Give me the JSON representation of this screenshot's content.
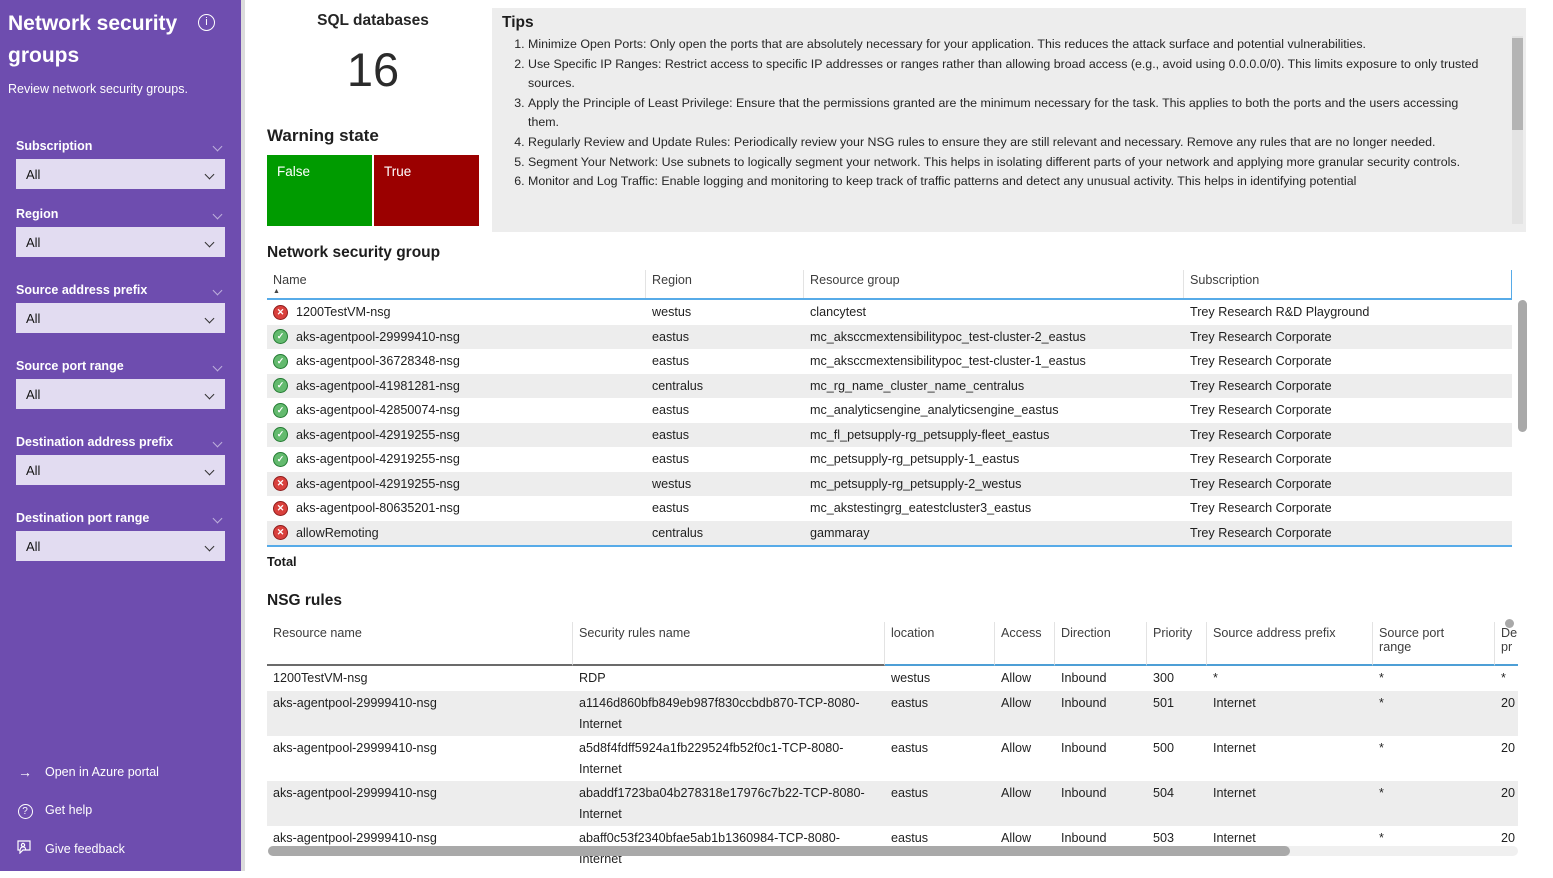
{
  "sidebar": {
    "title": "Network security groups",
    "subtitle": "Review network security groups.",
    "filters": [
      {
        "label": "Subscription",
        "value": "All"
      },
      {
        "label": "Region",
        "value": "All"
      },
      {
        "label": "Source address prefix",
        "value": "All"
      },
      {
        "label": "Source port range",
        "value": "All"
      },
      {
        "label": "Destination address prefix",
        "value": "All"
      },
      {
        "label": "Destination port range",
        "value": "All"
      }
    ],
    "links": [
      {
        "label": "Open in Azure portal",
        "icon": "arrow-right-icon"
      },
      {
        "label": "Get help",
        "icon": "help-circle-icon"
      },
      {
        "label": "Give feedback",
        "icon": "feedback-icon"
      }
    ]
  },
  "kpi": {
    "title": "SQL databases",
    "value": "16"
  },
  "warning": {
    "title": "Warning state",
    "options": [
      {
        "label": "False",
        "color": "#009B00"
      },
      {
        "label": "True",
        "color": "#9B0000"
      }
    ]
  },
  "tips": {
    "title": "Tips",
    "items": [
      "Minimize Open Ports: Only open the ports that are absolutely necessary for your application. This reduces the attack surface and potential vulnerabilities.",
      "Use Specific IP Ranges: Restrict access to specific IP addresses or ranges rather than allowing broad access (e.g., avoid using 0.0.0.0/0). This limits exposure to only trusted sources.",
      "Apply the Principle of Least Privilege: Ensure that the permissions granted are the minimum necessary for the task. This applies to both the ports and the users accessing them.",
      "Regularly Review and Update Rules: Periodically review your NSG rules to ensure they are still relevant and necessary. Remove any rules that are no longer needed.",
      "Segment Your Network: Use subnets to logically segment your network. This helps in isolating different parts of your network and applying more granular security controls.",
      "Monitor and Log Traffic: Enable logging and monitoring to keep track of traffic patterns and detect any unusual activity. This helps in identifying potential"
    ]
  },
  "nsg_table": {
    "title": "Network security group",
    "columns": [
      "Name",
      "Region",
      "Resource group",
      "Subscription"
    ],
    "total_label": "Total",
    "rows": [
      {
        "status": "error",
        "name": "1200TestVM-nsg",
        "region": "westus",
        "resource_group": "clancytest",
        "subscription": "Trey Research R&D Playground"
      },
      {
        "status": "ok",
        "name": "aks-agentpool-29999410-nsg",
        "region": "eastus",
        "resource_group": "mc_aksccmextensibilitypoc_test-cluster-2_eastus",
        "subscription": "Trey Research Corporate"
      },
      {
        "status": "ok",
        "name": "aks-agentpool-36728348-nsg",
        "region": "eastus",
        "resource_group": "mc_aksccmextensibilitypoc_test-cluster-1_eastus",
        "subscription": "Trey Research Corporate"
      },
      {
        "status": "ok",
        "name": "aks-agentpool-41981281-nsg",
        "region": "centralus",
        "resource_group": "mc_rg_name_cluster_name_centralus",
        "subscription": "Trey Research Corporate"
      },
      {
        "status": "ok",
        "name": "aks-agentpool-42850074-nsg",
        "region": "eastus",
        "resource_group": "mc_analyticsengine_analyticsengine_eastus",
        "subscription": "Trey Research Corporate"
      },
      {
        "status": "ok",
        "name": "aks-agentpool-42919255-nsg",
        "region": "eastus",
        "resource_group": "mc_fl_petsupply-rg_petsupply-fleet_eastus",
        "subscription": "Trey Research Corporate"
      },
      {
        "status": "ok",
        "name": "aks-agentpool-42919255-nsg",
        "region": "eastus",
        "resource_group": "mc_petsupply-rg_petsupply-1_eastus",
        "subscription": "Trey Research Corporate"
      },
      {
        "status": "error",
        "name": "aks-agentpool-42919255-nsg",
        "region": "westus",
        "resource_group": "mc_petsupply-rg_petsupply-2_westus",
        "subscription": "Trey Research Corporate"
      },
      {
        "status": "error",
        "name": "aks-agentpool-80635201-nsg",
        "region": "eastus",
        "resource_group": "mc_akstestingrg_eatestcluster3_eastus",
        "subscription": "Trey Research Corporate"
      },
      {
        "status": "error",
        "name": "allowRemoting",
        "region": "centralus",
        "resource_group": "gammaray",
        "subscription": "Trey Research Corporate"
      }
    ]
  },
  "rules_table": {
    "title": "NSG rules",
    "columns": [
      "Resource name",
      "Security rules name",
      "location",
      "Access",
      "Direction",
      "Priority",
      "Source address prefix",
      "Source port\nrange",
      "De\npr"
    ],
    "rows": [
      [
        "1200TestVM-nsg",
        "RDP",
        "westus",
        "Allow",
        "Inbound",
        "300",
        "*",
        "*",
        "*"
      ],
      [
        "aks-agentpool-29999410-nsg",
        "a1146d860bfb849eb987f830ccbdb870-TCP-8080-Internet",
        "eastus",
        "Allow",
        "Inbound",
        "501",
        "Internet",
        "*",
        "20"
      ],
      [
        "aks-agentpool-29999410-nsg",
        "a5d8f4fdff5924a1fb229524fb52f0c1-TCP-8080-Internet",
        "eastus",
        "Allow",
        "Inbound",
        "500",
        "Internet",
        "*",
        "20"
      ],
      [
        "aks-agentpool-29999410-nsg",
        "abaddf1723ba04b278318e17976c7b22-TCP-8080-Internet",
        "eastus",
        "Allow",
        "Inbound",
        "504",
        "Internet",
        "*",
        "20"
      ],
      [
        "aks-agentpool-29999410-nsg",
        "abaff0c53f2340bfae5ab1b1360984-TCP-8080-Internet",
        "eastus",
        "Allow",
        "Inbound",
        "503",
        "Internet",
        "*",
        "20"
      ]
    ]
  },
  "icons": {
    "ok": "✓",
    "error": "✕",
    "info": "i",
    "arrow_right": "→",
    "help": "?"
  }
}
